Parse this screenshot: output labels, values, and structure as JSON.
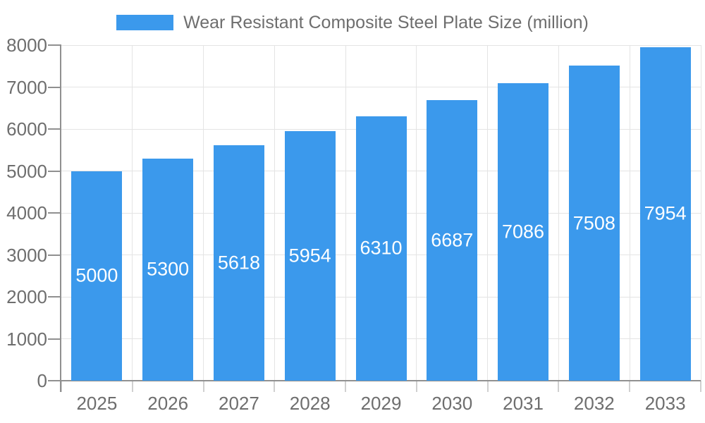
{
  "legend": {
    "position": "top",
    "label": "Wear Resistant Composite Steel Plate Size (million)"
  },
  "chart_data": {
    "type": "bar",
    "title": "Wear Resistant Composite Steel Plate Size (million)",
    "categories": [
      "2025",
      "2026",
      "2027",
      "2028",
      "2029",
      "2030",
      "2031",
      "2032",
      "2033"
    ],
    "values": [
      5000,
      5300,
      5618,
      5954,
      6310,
      6687,
      7086,
      7508,
      7954
    ],
    "xlabel": "",
    "ylabel": "",
    "ylim": [
      0,
      8000
    ],
    "y_tick_step": 1000,
    "y_tick_labels": [
      "0",
      "1000",
      "2000",
      "3000",
      "4000",
      "5000",
      "6000",
      "7000",
      "8000"
    ],
    "grid": true,
    "legend_position": "top",
    "value_labels_inside_bars": true,
    "colors": {
      "bar": "#3b99ec",
      "axis_text": "#6e6e6e",
      "grid_line": "#e4e4e4",
      "axis_line": "#909090",
      "x_tick": "#d0d0d0",
      "value_label": "#ffffff",
      "background": "#ffffff"
    }
  }
}
